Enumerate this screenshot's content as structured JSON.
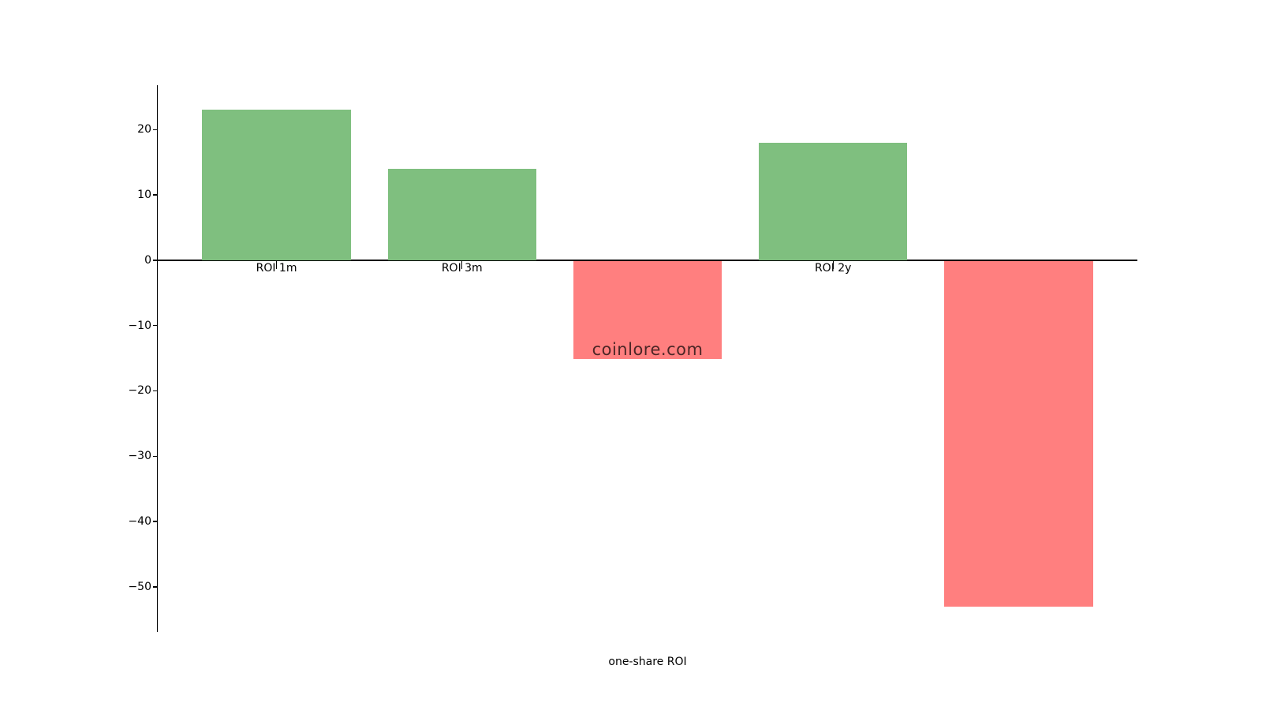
{
  "watermark": "coinlore.com",
  "chart_data": {
    "type": "bar",
    "title": "",
    "xlabel": "one-share ROI",
    "ylabel": "",
    "categories": [
      "ROI 1m",
      "ROI 3m",
      "",
      "ROI 2y",
      ""
    ],
    "values": [
      23,
      14,
      -15,
      18,
      -53
    ],
    "bar_colors": [
      "#7fbf7f",
      "#7fbf7f",
      "#ff7f7f",
      "#7fbf7f",
      "#ff7f7f"
    ],
    "positive_color": "#7fbf7f",
    "negative_color": "#ff7f7f",
    "yticks": [
      20,
      10,
      0,
      -10,
      -20,
      -30,
      -40,
      -50
    ],
    "ytick_labels": [
      "20",
      "10",
      "0",
      "−10",
      "−20",
      "−30",
      "−40",
      "−50"
    ],
    "ylim": [
      -56.9,
      26.8
    ],
    "xlim": [
      -0.64,
      4.64
    ],
    "bar_width": 0.8,
    "grid": false,
    "legend": null,
    "axis_color": "#000000",
    "background_color": "#ffffff",
    "watermark_color": "#4d4d4d"
  }
}
